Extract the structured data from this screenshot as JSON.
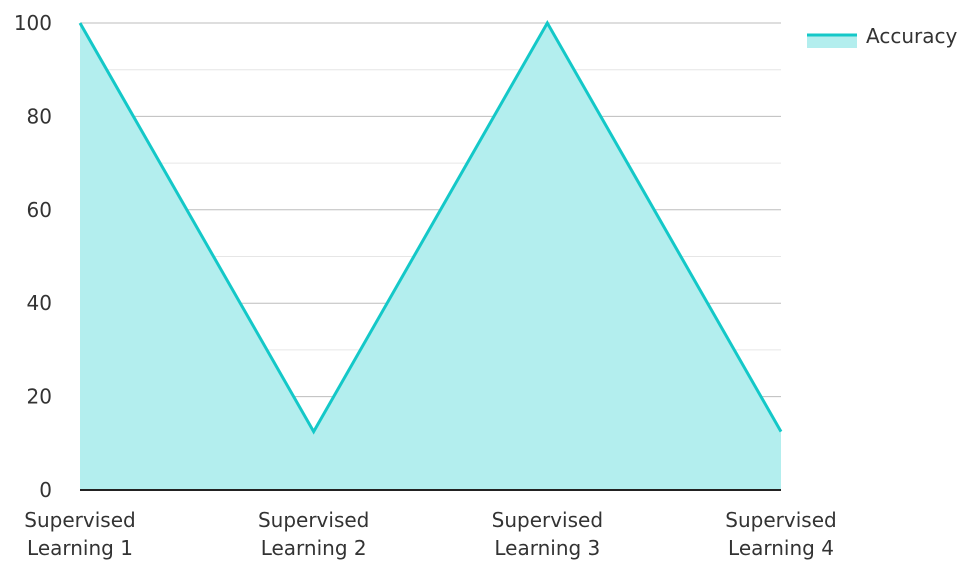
{
  "chart_data": {
    "type": "area",
    "categories": [
      [
        "Supervised",
        "Learning 1"
      ],
      [
        "Supervised",
        "Learning 2"
      ],
      [
        "Supervised",
        "Learning 3"
      ],
      [
        "Supervised",
        "Learning 4"
      ]
    ],
    "series": [
      {
        "name": "Accuracy",
        "values": [
          100,
          12.5,
          100,
          12.5
        ]
      }
    ],
    "ylim": [
      0,
      100
    ],
    "yticks": [
      0,
      20,
      40,
      60,
      80,
      100
    ],
    "grid": true,
    "legend_position": "top-right",
    "colors": {
      "line": "#14c8c8",
      "fill": "#b3eeee",
      "major_grid": "#bdbdbd",
      "minor_grid": "#e6e6e6",
      "axis": "#222222"
    }
  }
}
